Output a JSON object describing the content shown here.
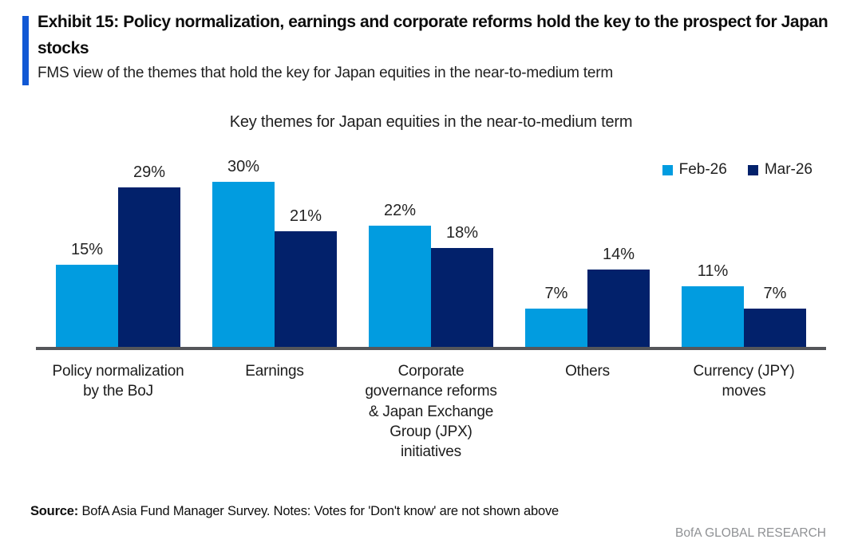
{
  "header": {
    "exhibit_title": "Exhibit 15: Policy normalization, earnings and corporate reforms hold the key to the prospect for Japan stocks",
    "subtitle": "FMS view of the themes that hold the key for Japan equities in the near-to-medium term",
    "accent_color": "#1158D4"
  },
  "chart_data": {
    "type": "bar",
    "title": "Key themes for Japan equities in the near-to-medium term",
    "categories": [
      "Policy normalization\nby the BoJ",
      "Earnings",
      "Corporate\ngovernance reforms\n& Japan Exchange\nGroup (JPX)\ninitiatives",
      "Others",
      "Currency (JPY)\nmoves"
    ],
    "series": [
      {
        "name": "Feb-26",
        "color": "#019CE0",
        "values": [
          15,
          30,
          22,
          7,
          11
        ]
      },
      {
        "name": "Mar-26",
        "color": "#02216B",
        "values": [
          29,
          21,
          18,
          14,
          7
        ]
      }
    ],
    "value_suffix": "%",
    "ylim": [
      0,
      30
    ],
    "grid": false,
    "legend_position": "top-right",
    "axis_color": "#55565A"
  },
  "footer": {
    "source_label": "Source:",
    "source_text": "BofA Asia Fund Manager Survey. Notes: Votes for 'Don't know' are not shown above",
    "brand": "BofA GLOBAL RESEARCH"
  }
}
